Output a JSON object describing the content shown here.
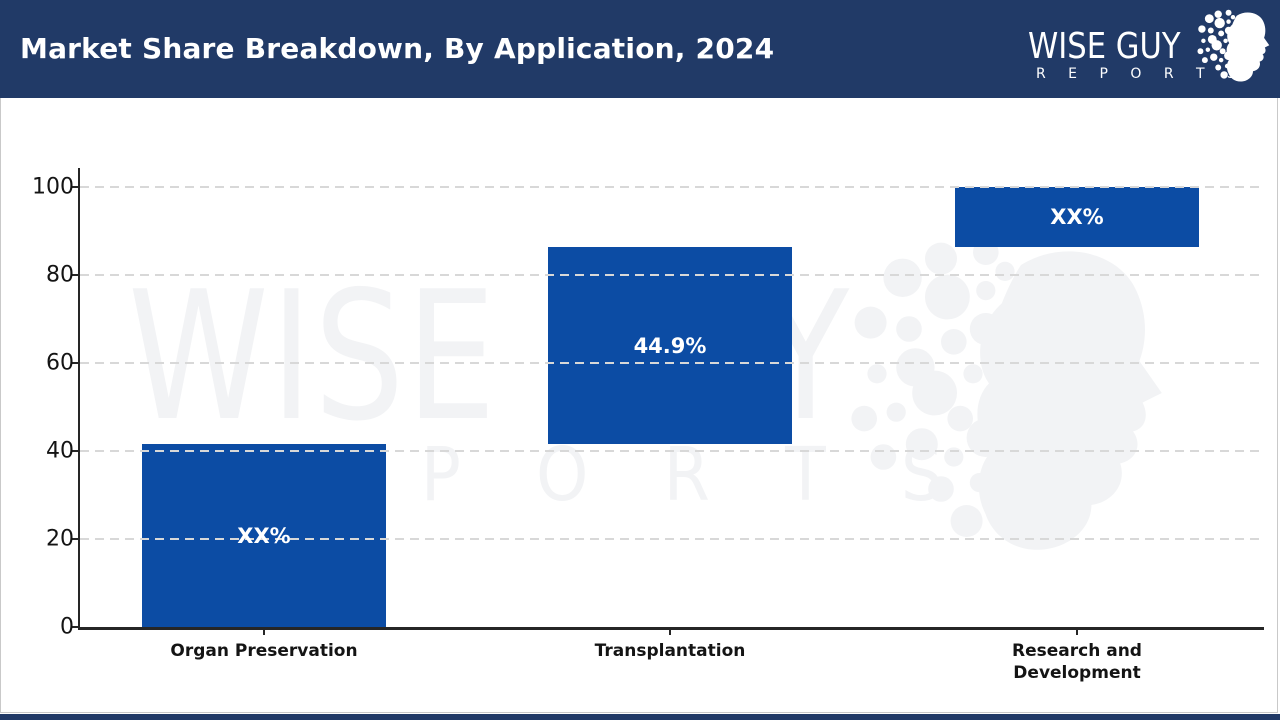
{
  "header": {
    "title": "Market Share Breakdown, By Application, 2024",
    "logo": {
      "name": "WISE GUY",
      "sub": "R E P O R T S"
    }
  },
  "watermark": {
    "text": "WISE GUY",
    "sub": "R E P O R T S"
  },
  "chart_data": {
    "type": "bar",
    "subtype": "waterfall-breakdown",
    "title": "Market Share Breakdown, By Application, 2024",
    "categories": [
      "Organ Preservation",
      "Transplantation",
      "Research and\nDevelopment"
    ],
    "segments": [
      {
        "category": "Organ Preservation",
        "start": 0,
        "end": 41.5,
        "label": "XX%"
      },
      {
        "category": "Transplantation",
        "start": 41.5,
        "end": 86.4,
        "label": "44.9%"
      },
      {
        "category": "Research and Development",
        "start": 86.4,
        "end": 100,
        "label": "XX%"
      }
    ],
    "yticks": [
      0,
      20,
      40,
      60,
      80,
      100
    ],
    "ylim": [
      0,
      104
    ],
    "xlabel": "",
    "ylabel": "",
    "grid": "horizontal-dashed",
    "legend": "none",
    "bar_color": "#0c4ca4",
    "value_label_color": "#ffffff"
  },
  "colors": {
    "header_bg": "#213a67",
    "footer_bg": "#213a67",
    "bar": "#0c4ca4",
    "watermark": "#f2f3f5",
    "gridline": "#d8d8d8",
    "axis": "#262626",
    "tick_text": "#141414",
    "page_bg": "#ffffff",
    "border": "#c9c9c9"
  }
}
